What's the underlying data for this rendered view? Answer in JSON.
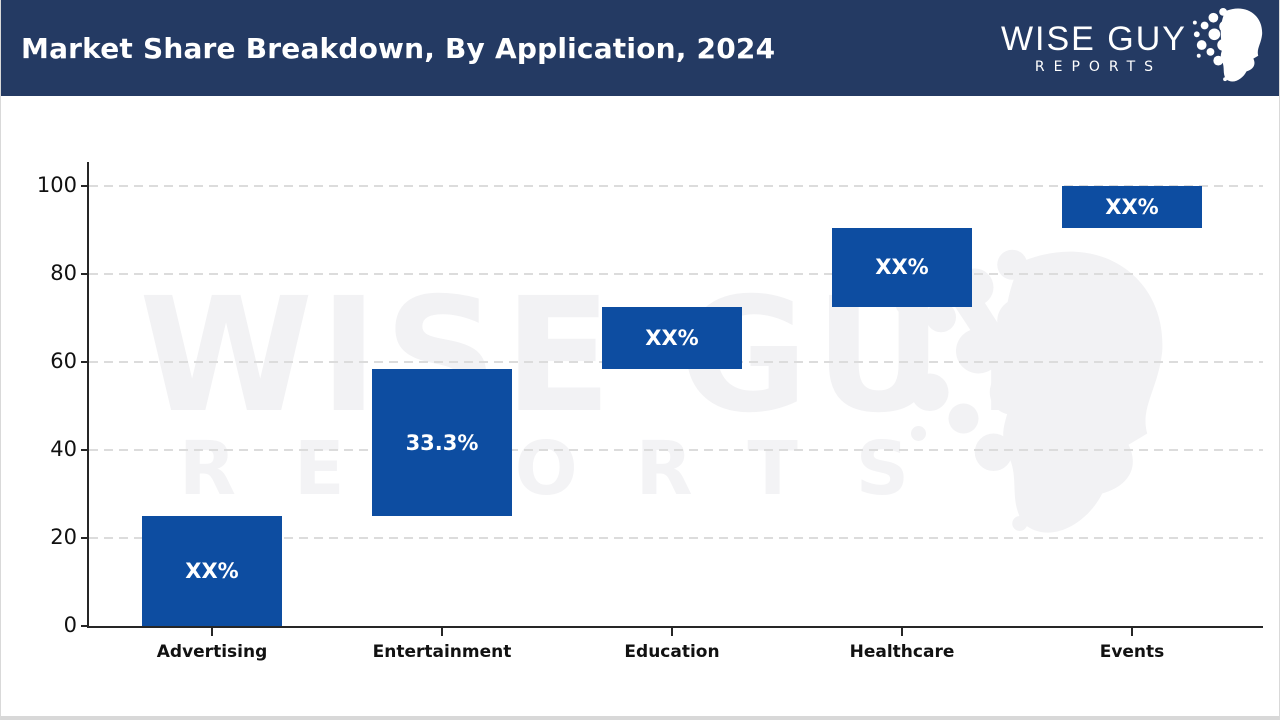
{
  "header": {
    "title": "Market Share Breakdown, By Application, 2024",
    "logo": {
      "line1": "WISE GUY",
      "line2": "REPORTS"
    }
  },
  "watermark": {
    "line1": "WISE GUY",
    "line2": "REPORTS"
  },
  "colors": {
    "header_bg": "#243a63",
    "bar": "#0d4da1",
    "grid": "#dcdcdc",
    "axis": "#262626",
    "bar_label": "#ffffff",
    "watermark": "#f2f2f4"
  },
  "chart_data": {
    "type": "bar",
    "subtype": "waterfall",
    "title": "Market Share Breakdown, By Application, 2024",
    "categories": [
      "Advertising",
      "Entertainment",
      "Education",
      "Healthcare",
      "Events"
    ],
    "bars": [
      {
        "category": "Advertising",
        "start": 0,
        "end": 25,
        "label": "XX%"
      },
      {
        "category": "Entertainment",
        "start": 25,
        "end": 58.3,
        "label": "33.3%"
      },
      {
        "category": "Education",
        "start": 58.3,
        "end": 72.5,
        "label": "XX%"
      },
      {
        "category": "Healthcare",
        "start": 72.5,
        "end": 90.5,
        "label": "XX%"
      },
      {
        "category": "Events",
        "start": 90.5,
        "end": 100,
        "label": "XX%"
      }
    ],
    "ylim": [
      0,
      100
    ],
    "yticks": [
      0,
      20,
      40,
      60,
      80,
      100
    ],
    "xlabel": "",
    "ylabel": "",
    "legend": "none",
    "grid": "horizontal-dashed"
  }
}
